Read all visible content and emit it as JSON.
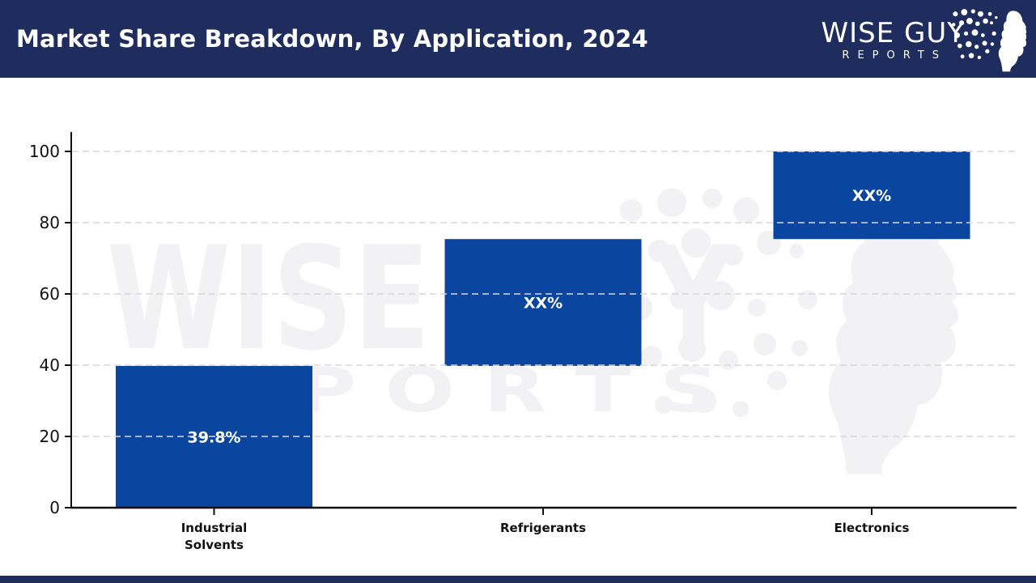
{
  "header": {
    "title": "Market Share Breakdown, By Application, 2024",
    "logo": {
      "name": "WISE GUY",
      "tagline": "REPORTS"
    }
  },
  "watermark": {
    "line1": "WISE GUY",
    "line2": "R E P O R T S"
  },
  "colors": {
    "header_bg": "#1e2d5e",
    "footer_bg": "#1e2d5e",
    "bar": "#0a45a0",
    "grid": "#d8d8d8",
    "axis": "#111111",
    "tick_label": "#111111",
    "bar_label": "#ffffff",
    "watermark": "#f2f2f5"
  },
  "chart_data": {
    "type": "bar",
    "subtype": "waterfall",
    "title": "Market Share Breakdown, By Application, 2024",
    "categories": [
      "Industrial Solvents",
      "Refrigerants",
      "Electronics"
    ],
    "categories_lines": [
      [
        "Industrial",
        "Solvents"
      ],
      [
        "Refrigerants"
      ],
      [
        "Electronics"
      ]
    ],
    "series": [
      {
        "name": "Market Share",
        "segments": [
          {
            "category": "Industrial Solvents",
            "start": 0,
            "end": 39.8,
            "label": "39.8%"
          },
          {
            "category": "Refrigerants",
            "start": 39.8,
            "end": 75.4,
            "label": "XX%"
          },
          {
            "category": "Electronics",
            "start": 75.4,
            "end": 100,
            "label": "XX%"
          }
        ]
      }
    ],
    "xlabel": "",
    "ylabel": "",
    "ylim": [
      0,
      100
    ],
    "yticks": [
      0,
      20,
      40,
      60,
      80,
      100
    ],
    "grid": "horizontal-dashed",
    "legend": "none"
  }
}
